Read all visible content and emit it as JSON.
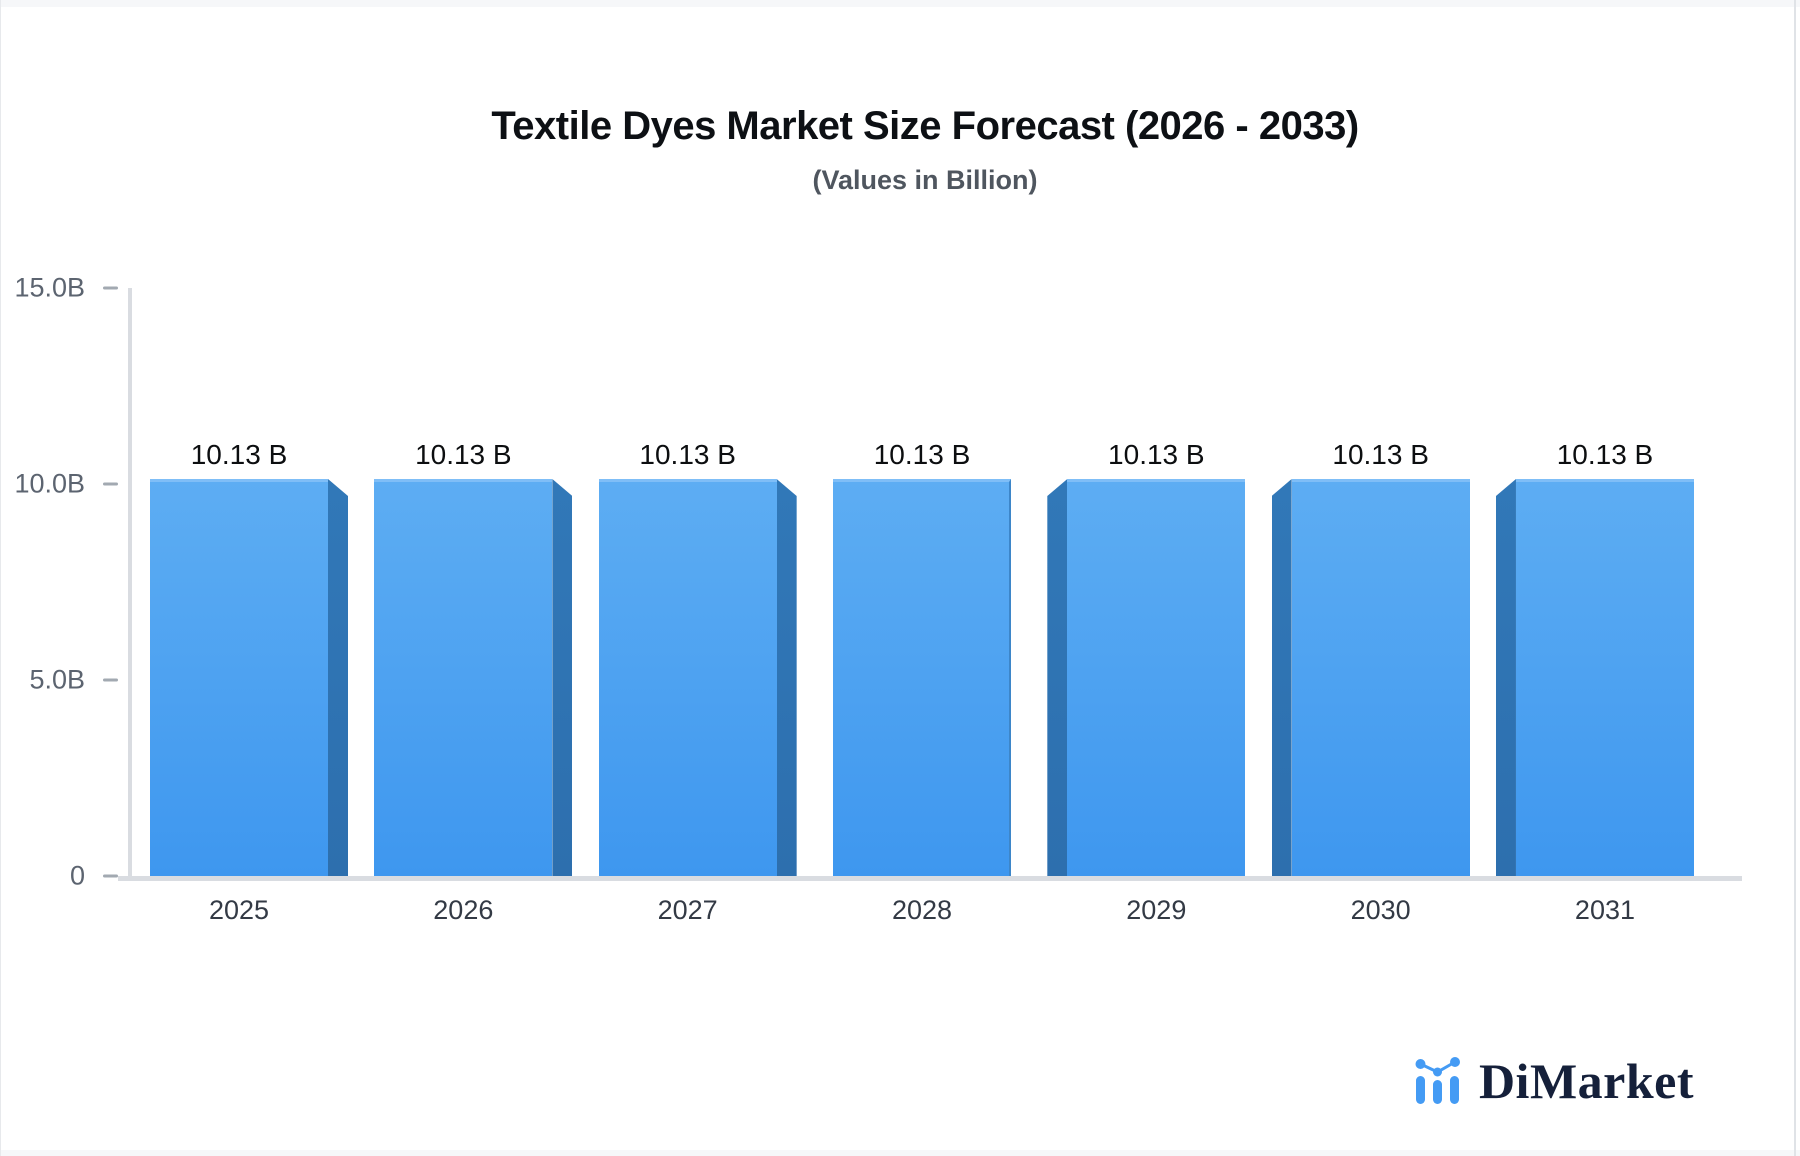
{
  "header": {
    "title": "Textile Dyes Market Size Forecast (2026 - 2033)",
    "subtitle": "(Values in Billion)"
  },
  "logo": {
    "text": "DiMarket",
    "icon": "mini-bar-line-chart"
  },
  "colors": {
    "bar_face_top": "#5dadf3",
    "bar_face_bottom": "#3e97ef",
    "bar_face_highlight": "#7fbef7",
    "bar_side_dark": "#2d6fae",
    "axis_line": "#d9dce1",
    "tick_dash": "#a2a9b1",
    "title_text": "#0d1014",
    "subtitle_text": "#4f565f",
    "y_label_text": "#5c6470",
    "x_label_text": "#333a45",
    "logo_blue": "#449bf4",
    "logo_navy": "#15203a"
  },
  "chart_data": {
    "type": "bar",
    "title": "Textile Dyes Market Size Forecast (2026 - 2033)",
    "subtitle": "(Values in Billion)",
    "categories": [
      "2025",
      "2026",
      "2027",
      "2028",
      "2029",
      "2030",
      "2031"
    ],
    "values": [
      10.13,
      10.13,
      10.13,
      10.13,
      10.13,
      10.13,
      10.13
    ],
    "data_labels": [
      "10.13 B",
      "10.13 B",
      "10.13 B",
      "10.13 B",
      "10.13 B",
      "10.13 B",
      "10.13 B"
    ],
    "xlabel": "",
    "ylabel": "",
    "ylim": [
      0,
      15
    ],
    "y_ticks": [
      {
        "value": 15,
        "label": "15.0B"
      },
      {
        "value": 10,
        "label": "10.0B"
      },
      {
        "value": 5,
        "label": "5.0B"
      },
      {
        "value": 0,
        "label": "0"
      }
    ],
    "grid": false,
    "legend": false,
    "bar_style": "3d-beveled-single-series"
  }
}
